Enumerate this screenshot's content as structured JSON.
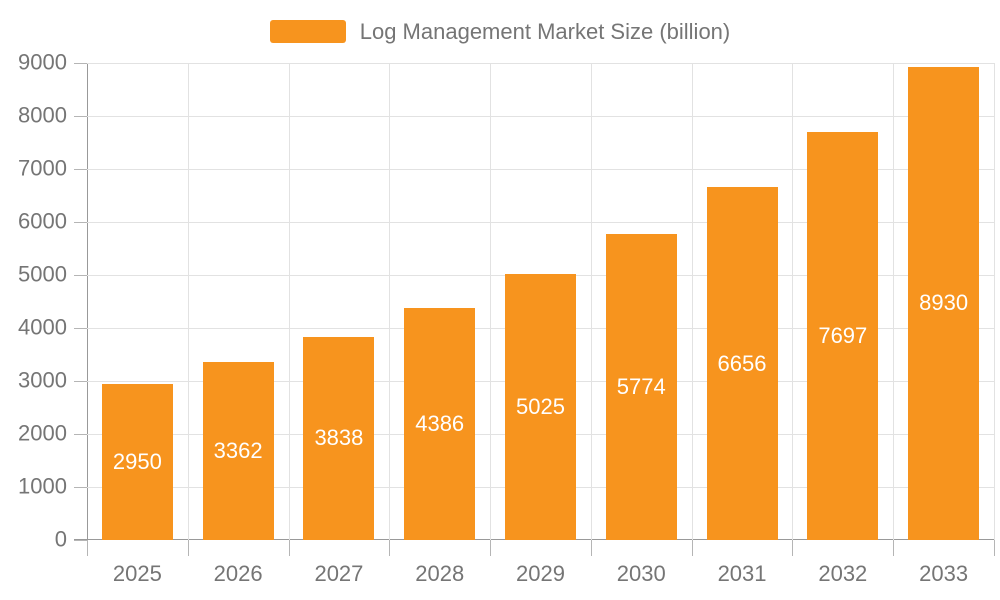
{
  "legend": {
    "label": "Log Management Market Size (billion)"
  },
  "colors": {
    "bar": "#F7941E",
    "grid": "#E2E2E2",
    "axis": "#999999",
    "tick": "#B5B5B5",
    "tick_label": "#757575",
    "value_label": "#FFFFFF",
    "background": "#FFFFFF"
  },
  "chart_data": {
    "type": "bar",
    "title": "Log Management Market Size (billion)",
    "series_name": "Log Management Market Size (billion)",
    "categories": [
      "2025",
      "2026",
      "2027",
      "2028",
      "2029",
      "2030",
      "2031",
      "2032",
      "2033"
    ],
    "values": [
      2950,
      3362,
      3838,
      4386,
      5025,
      5774,
      6656,
      7697,
      8930
    ],
    "xlabel": "",
    "ylabel": "",
    "ylim": [
      0,
      9000
    ],
    "yticks": [
      0,
      1000,
      2000,
      3000,
      4000,
      5000,
      6000,
      7000,
      8000,
      9000
    ],
    "grid": "on",
    "legend_position": "top-center",
    "value_labels": "inside-center-white"
  }
}
